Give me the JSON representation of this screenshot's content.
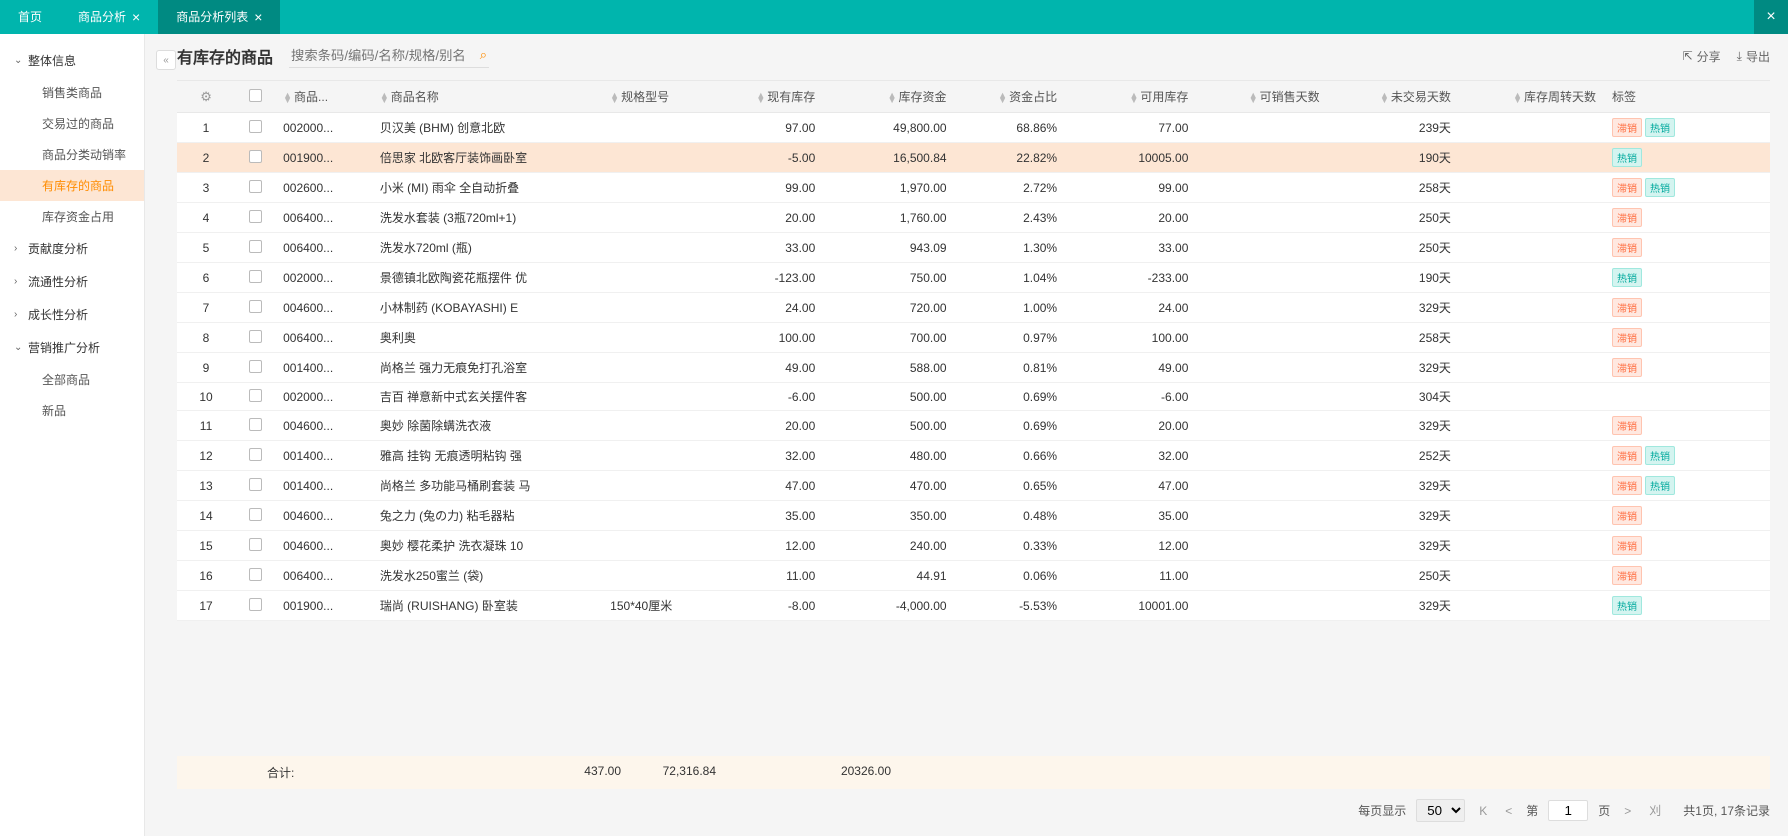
{
  "tabs": [
    {
      "label": "首页",
      "closable": false,
      "active": false
    },
    {
      "label": "商品分析",
      "closable": true,
      "active": false
    },
    {
      "label": "商品分析列表",
      "closable": true,
      "active": true
    }
  ],
  "sidebar": {
    "groups": [
      {
        "title": "整体信息",
        "expanded": true,
        "items": [
          {
            "label": "销售类商品"
          },
          {
            "label": "交易过的商品"
          },
          {
            "label": "商品分类动销率"
          },
          {
            "label": "有库存的商品",
            "active": true
          },
          {
            "label": "库存资金占用"
          }
        ]
      },
      {
        "title": "贡献度分析",
        "expanded": false,
        "items": []
      },
      {
        "title": "流通性分析",
        "expanded": false,
        "items": []
      },
      {
        "title": "成长性分析",
        "expanded": false,
        "items": []
      },
      {
        "title": "营销推广分析",
        "expanded": true,
        "items": [
          {
            "label": "全部商品"
          },
          {
            "label": "新品"
          }
        ]
      }
    ]
  },
  "header": {
    "title": "有库存的商品",
    "search_placeholder": "搜索条码/编码/名称/规格/别名",
    "share_label": "分享",
    "export_label": "导出"
  },
  "columns": [
    "商品...",
    "商品名称",
    "规格型号",
    "现有库存",
    "库存资金",
    "资金占比",
    "可用库存",
    "可销售天数",
    "未交易天数",
    "库存周转天数",
    "标签"
  ],
  "rows": [
    {
      "n": 1,
      "code": "002000...",
      "name": "贝汉美 (BHM) 创意北欧",
      "spec": "",
      "stock": "97.00",
      "fund": "49,800.00",
      "pct": "68.86%",
      "avail": "77.00",
      "saledays": "",
      "notrade": "239天",
      "turndays": "",
      "tags": [
        "滞销",
        "热销"
      ]
    },
    {
      "n": 2,
      "code": "001900...",
      "name": "倍思家 北欧客厅装饰画卧室",
      "spec": "",
      "stock": "-5.00",
      "fund": "16,500.84",
      "pct": "22.82%",
      "avail": "10005.00",
      "saledays": "",
      "notrade": "190天",
      "turndays": "",
      "tags": [
        "热销"
      ],
      "hl": true
    },
    {
      "n": 3,
      "code": "002600...",
      "name": "小米 (MI) 雨伞 全自动折叠",
      "spec": "",
      "stock": "99.00",
      "fund": "1,970.00",
      "pct": "2.72%",
      "avail": "99.00",
      "saledays": "",
      "notrade": "258天",
      "turndays": "",
      "tags": [
        "滞销",
        "热销"
      ]
    },
    {
      "n": 4,
      "code": "006400...",
      "name": "洗发水套装 (3瓶720ml+1)",
      "spec": "",
      "stock": "20.00",
      "fund": "1,760.00",
      "pct": "2.43%",
      "avail": "20.00",
      "saledays": "",
      "notrade": "250天",
      "turndays": "",
      "tags": [
        "滞销"
      ]
    },
    {
      "n": 5,
      "code": "006400...",
      "name": "洗发水720ml (瓶)",
      "spec": "",
      "stock": "33.00",
      "fund": "943.09",
      "pct": "1.30%",
      "avail": "33.00",
      "saledays": "",
      "notrade": "250天",
      "turndays": "",
      "tags": [
        "滞销"
      ]
    },
    {
      "n": 6,
      "code": "002000...",
      "name": "景德镇北欧陶瓷花瓶摆件 优",
      "spec": "",
      "stock": "-123.00",
      "fund": "750.00",
      "pct": "1.04%",
      "avail": "-233.00",
      "saledays": "",
      "notrade": "190天",
      "turndays": "",
      "tags": [
        "热销"
      ]
    },
    {
      "n": 7,
      "code": "004600...",
      "name": "小林制药 (KOBAYASHI) E",
      "spec": "",
      "stock": "24.00",
      "fund": "720.00",
      "pct": "1.00%",
      "avail": "24.00",
      "saledays": "",
      "notrade": "329天",
      "turndays": "",
      "tags": [
        "滞销"
      ]
    },
    {
      "n": 8,
      "code": "006400...",
      "name": "奥利奥",
      "spec": "",
      "stock": "100.00",
      "fund": "700.00",
      "pct": "0.97%",
      "avail": "100.00",
      "saledays": "",
      "notrade": "258天",
      "turndays": "",
      "tags": [
        "滞销"
      ]
    },
    {
      "n": 9,
      "code": "001400...",
      "name": "尚格兰 强力无痕免打孔浴室",
      "spec": "",
      "stock": "49.00",
      "fund": "588.00",
      "pct": "0.81%",
      "avail": "49.00",
      "saledays": "",
      "notrade": "329天",
      "turndays": "",
      "tags": [
        "滞销"
      ]
    },
    {
      "n": 10,
      "code": "002000...",
      "name": "吉百 禅意新中式玄关摆件客",
      "spec": "",
      "stock": "-6.00",
      "fund": "500.00",
      "pct": "0.69%",
      "avail": "-6.00",
      "saledays": "",
      "notrade": "304天",
      "turndays": "",
      "tags": []
    },
    {
      "n": 11,
      "code": "004600...",
      "name": "奥妙 除菌除螨洗衣液",
      "spec": "",
      "stock": "20.00",
      "fund": "500.00",
      "pct": "0.69%",
      "avail": "20.00",
      "saledays": "",
      "notrade": "329天",
      "turndays": "",
      "tags": [
        "滞销"
      ]
    },
    {
      "n": 12,
      "code": "001400...",
      "name": "雅高 挂钩 无痕透明粘钩 强",
      "spec": "",
      "stock": "32.00",
      "fund": "480.00",
      "pct": "0.66%",
      "avail": "32.00",
      "saledays": "",
      "notrade": "252天",
      "turndays": "",
      "tags": [
        "滞销",
        "热销"
      ]
    },
    {
      "n": 13,
      "code": "001400...",
      "name": "尚格兰 多功能马桶刷套装 马",
      "spec": "",
      "stock": "47.00",
      "fund": "470.00",
      "pct": "0.65%",
      "avail": "47.00",
      "saledays": "",
      "notrade": "329天",
      "turndays": "",
      "tags": [
        "滞销",
        "热销"
      ]
    },
    {
      "n": 14,
      "code": "004600...",
      "name": "兔之力 (兔の力) 粘毛器粘",
      "spec": "",
      "stock": "35.00",
      "fund": "350.00",
      "pct": "0.48%",
      "avail": "35.00",
      "saledays": "",
      "notrade": "329天",
      "turndays": "",
      "tags": [
        "滞销"
      ]
    },
    {
      "n": 15,
      "code": "004600...",
      "name": "奥妙 樱花柔护 洗衣凝珠 10",
      "spec": "",
      "stock": "12.00",
      "fund": "240.00",
      "pct": "0.33%",
      "avail": "12.00",
      "saledays": "",
      "notrade": "329天",
      "turndays": "",
      "tags": [
        "滞销"
      ]
    },
    {
      "n": 16,
      "code": "006400...",
      "name": "洗发水250蜜兰 (袋)",
      "spec": "",
      "stock": "11.00",
      "fund": "44.91",
      "pct": "0.06%",
      "avail": "11.00",
      "saledays": "",
      "notrade": "250天",
      "turndays": "",
      "tags": [
        "滞销"
      ]
    },
    {
      "n": 17,
      "code": "001900...",
      "name": "瑞尚 (RUISHANG) 卧室装",
      "spec": "150*40厘米",
      "stock": "-8.00",
      "fund": "-4,000.00",
      "pct": "-5.53%",
      "avail": "10001.00",
      "saledays": "",
      "notrade": "329天",
      "turndays": "",
      "tags": [
        "热销"
      ]
    }
  ],
  "totals": {
    "label": "合计:",
    "stock": "437.00",
    "fund": "72,316.84",
    "avail": "20326.00"
  },
  "pagination": {
    "per_page_label": "每页显示",
    "per_page": "50",
    "page_prefix": "第",
    "page": "1",
    "page_suffix": "页",
    "summary": "共1页, 17条记录"
  },
  "colors": {
    "primary": "#00b5ad",
    "highlight": "#fde6d4"
  }
}
